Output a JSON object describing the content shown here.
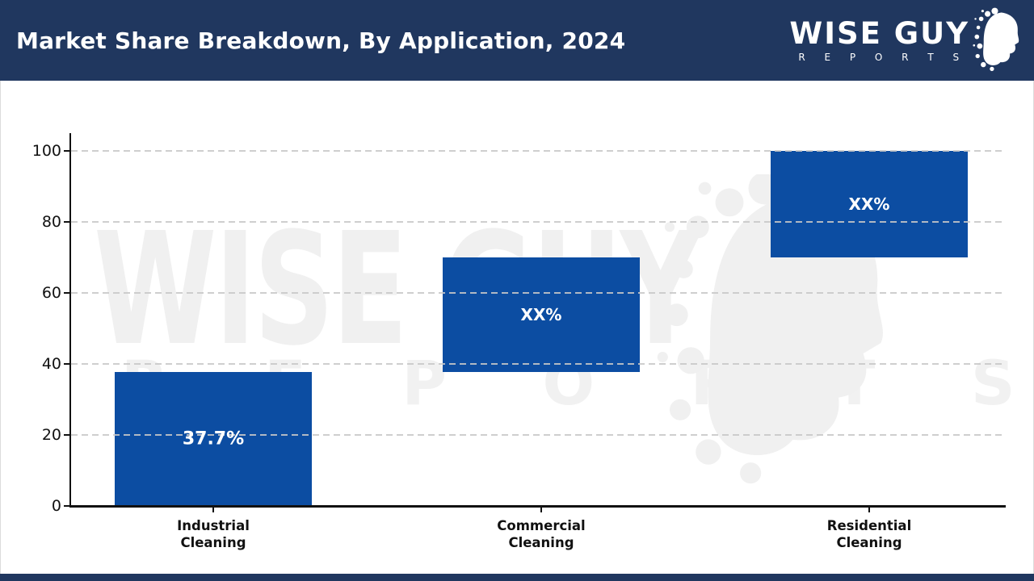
{
  "header": {
    "title": "Market Share Breakdown, By Application, 2024",
    "logo": {
      "wordmark": "WISE GUY",
      "subtext": "R E P O R T S"
    }
  },
  "watermark": {
    "wordmark": "WISE GUY",
    "subtext": "R E P O R T S"
  },
  "chart_data": {
    "type": "bar",
    "variant": "waterfall (each bar starts where previous ends)",
    "title": "Market Share Breakdown, By Application, 2024",
    "categories": [
      "Industrial\nCleaning",
      "Commercial\nCleaning",
      "Residential\nCleaning"
    ],
    "series": [
      {
        "name": "Market share %",
        "bases": [
          0,
          37.7,
          70.0
        ],
        "values": [
          37.7,
          32.3,
          30.0
        ],
        "labels": [
          "37.7%",
          "XX%",
          "XX%"
        ]
      }
    ],
    "ylim": [
      0,
      100
    ],
    "yticks": [
      0,
      20,
      40,
      60,
      80,
      100
    ],
    "xlabel": "",
    "ylabel": "",
    "grid": "horizontal dashed, drawn above bars",
    "legend": "none",
    "bar_color": "#0c4da2",
    "bar_label_color": "#ffffff"
  },
  "colors": {
    "header_bg": "#20375f",
    "footer_bg": "#20375f",
    "axis": "#111111",
    "watermark": "#f0f0f0"
  }
}
